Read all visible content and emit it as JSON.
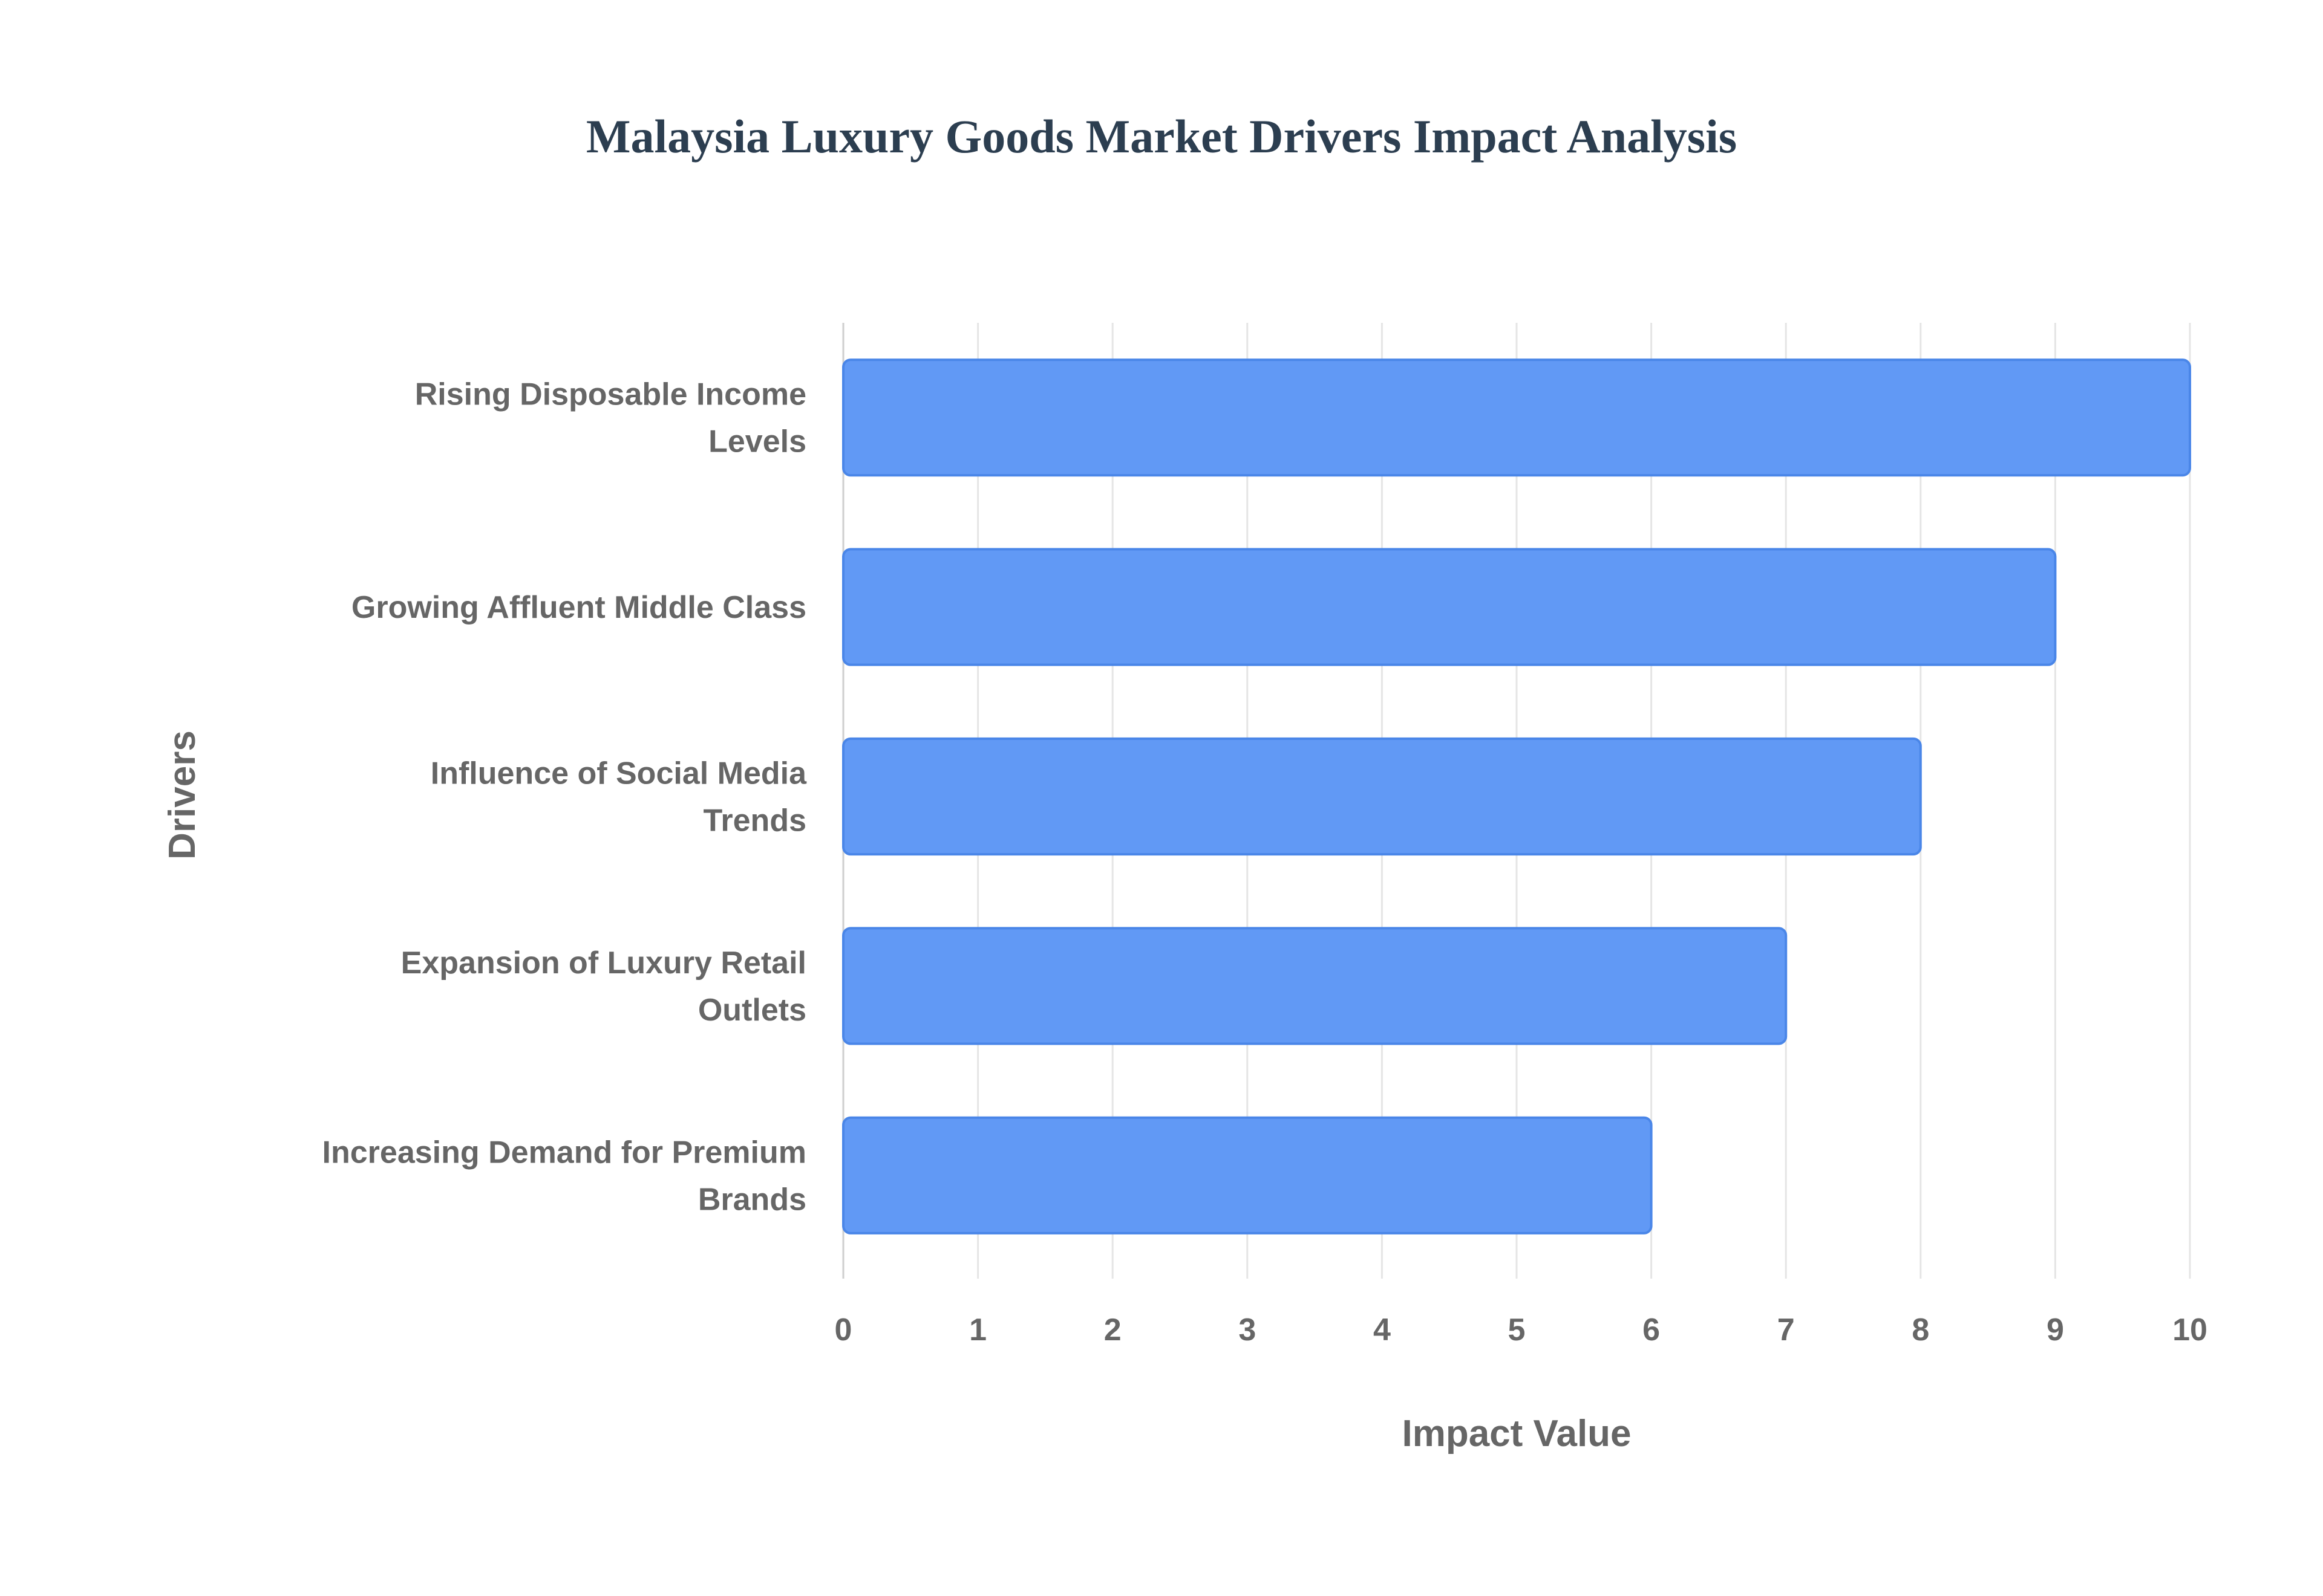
{
  "chart_data": {
    "type": "bar",
    "orientation": "horizontal",
    "title": "Malaysia Luxury Goods Market Drivers Impact Analysis",
    "xlabel": "Impact Value",
    "ylabel": "Drivers",
    "xlim": [
      0,
      10
    ],
    "x_ticks": [
      "0",
      "1",
      "2",
      "3",
      "4",
      "5",
      "6",
      "7",
      "8",
      "9",
      "10"
    ],
    "grid": true,
    "categories": [
      [
        "Rising Disposable Income",
        "Levels"
      ],
      [
        "Growing Affluent Middle Class"
      ],
      [
        "Influence of Social Media",
        "Trends"
      ],
      [
        "Expansion of Luxury Retail",
        "Outlets"
      ],
      [
        "Increasing Demand for Premium",
        "Brands"
      ]
    ],
    "values": [
      10,
      9,
      8,
      7,
      6
    ],
    "colors": {
      "bar_fill": "#6199f5",
      "bar_border": "#4a86e8",
      "grid": "#e5e5e5"
    }
  }
}
